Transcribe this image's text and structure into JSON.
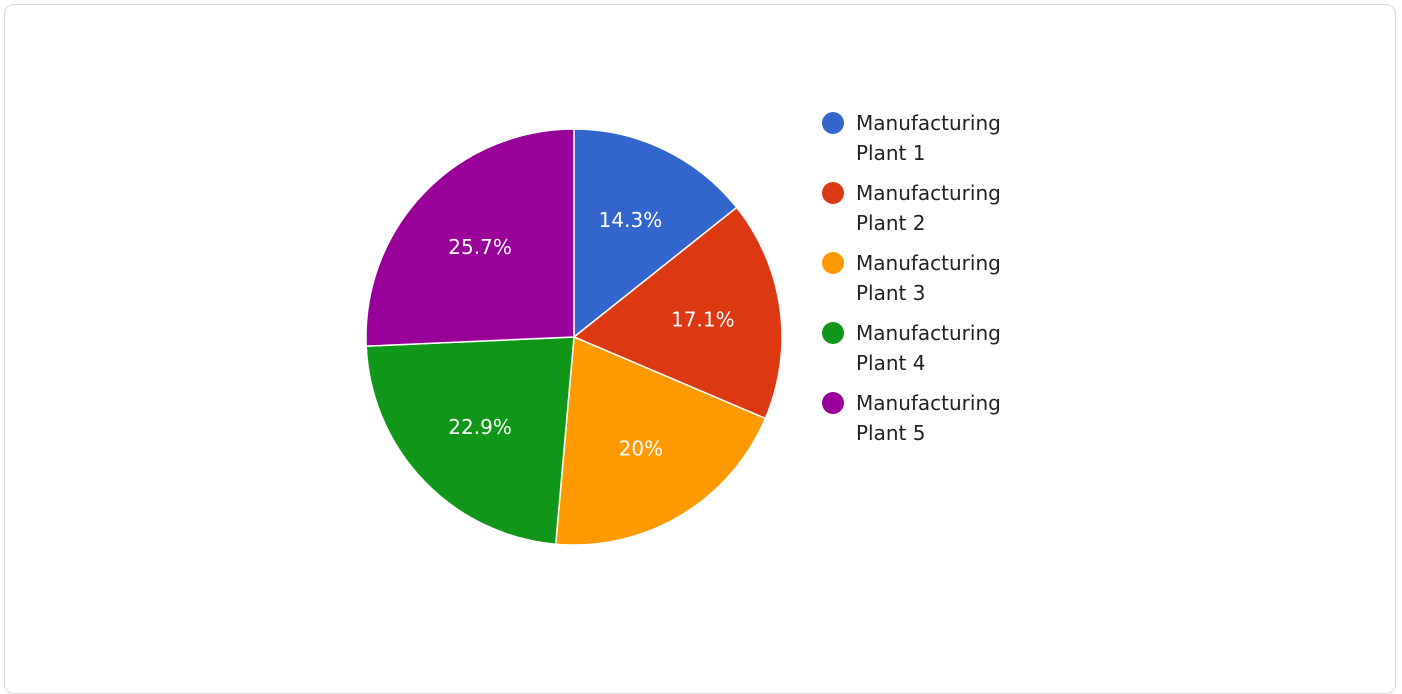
{
  "chart_data": {
    "type": "pie",
    "categories": [
      "Manufacturing Plant 1",
      "Manufacturing Plant 2",
      "Manufacturing Plant 3",
      "Manufacturing Plant 4",
      "Manufacturing Plant 5"
    ],
    "legend_lines": [
      [
        "Manufacturing",
        "Plant 1"
      ],
      [
        "Manufacturing",
        "Plant 2"
      ],
      [
        "Manufacturing",
        "Plant 3"
      ],
      [
        "Manufacturing",
        "Plant 4"
      ],
      [
        "Manufacturing",
        "Plant 5"
      ]
    ],
    "values": [
      14.3,
      17.1,
      20,
      22.9,
      25.7
    ],
    "labels": [
      "14.3%",
      "17.1%",
      "20%",
      "22.9%",
      "25.7%"
    ],
    "colors": [
      "#3366cc",
      "#dc3912",
      "#ff9900",
      "#109618",
      "#990099"
    ],
    "legend_position": "right",
    "title": "",
    "slice_border_color": "#ffffff"
  }
}
